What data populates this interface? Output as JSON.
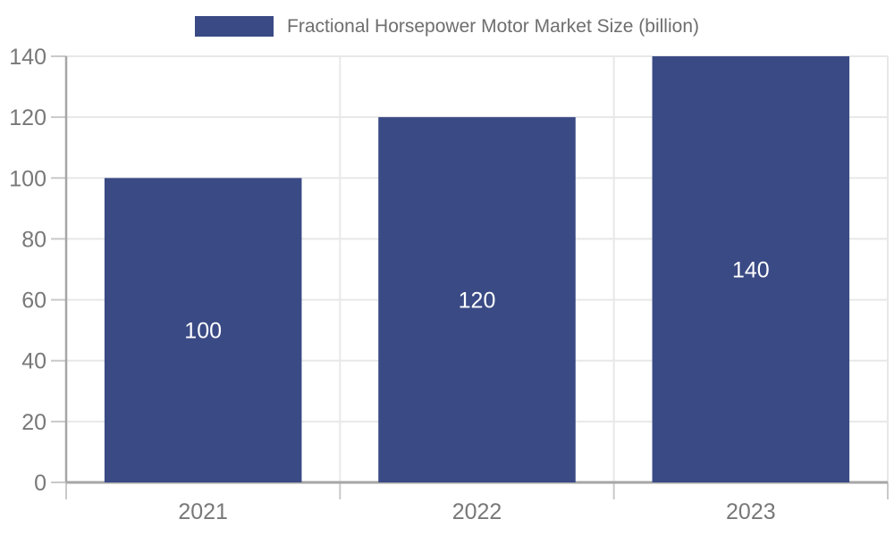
{
  "chart_data": {
    "type": "bar",
    "title": "Fractional Horsepower Motor Market Size (billion)",
    "legend": [
      "Fractional Horsepower Motor Market Size (billion)"
    ],
    "legend_position": "top",
    "categories": [
      "2021",
      "2022",
      "2023"
    ],
    "values": [
      100,
      120,
      140
    ],
    "value_labels": [
      "100",
      "120",
      "140"
    ],
    "xlabel": "",
    "ylabel": "",
    "ylim": [
      0,
      140
    ],
    "yticks": [
      0,
      20,
      40,
      60,
      80,
      100,
      120,
      140
    ],
    "grid": true,
    "bar_width_ratio": 0.72,
    "colors": {
      "bar": "#3A4A85",
      "value_label": "#FFFFFF",
      "grid_line": "#E8E8E8",
      "tick_line": "#C9C9C9",
      "axis_line": "#A6A6A6",
      "tick_label": "#787878",
      "legend_text": "#6E6E6E",
      "background": "#FFFFFF"
    }
  }
}
